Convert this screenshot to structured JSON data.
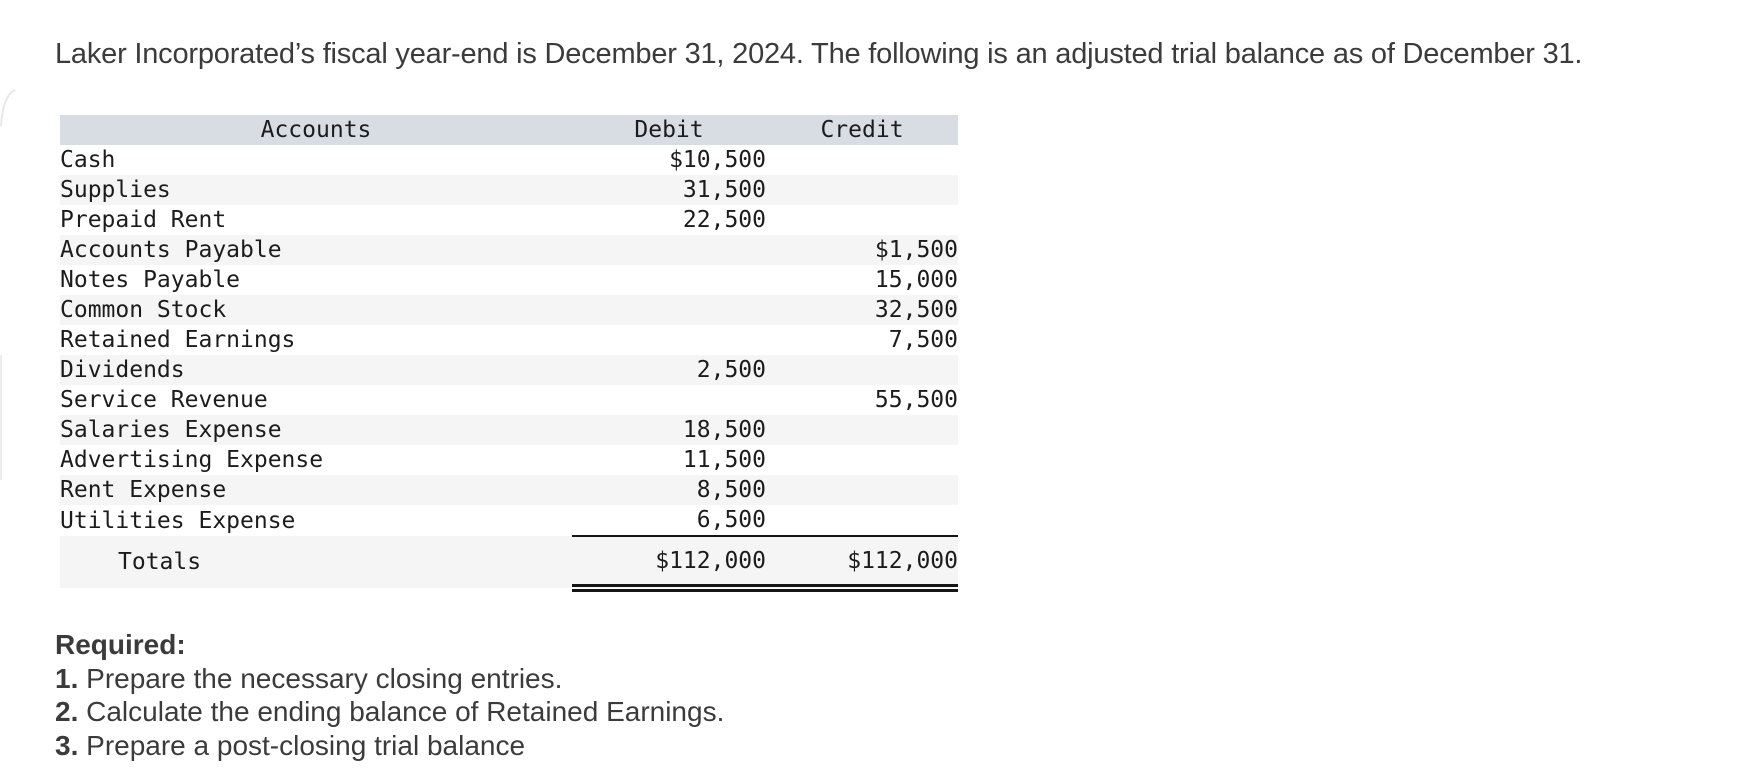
{
  "intro": "Laker Incorporated’s fiscal year-end is December 31, 2024. The following is an adjusted trial balance as of December 31.",
  "table": {
    "headers": {
      "accounts": "Accounts",
      "debit": "Debit",
      "credit": "Credit"
    },
    "rows": [
      {
        "account": "Cash",
        "debit": "$10,500",
        "credit": ""
      },
      {
        "account": "Supplies",
        "debit": "31,500",
        "credit": ""
      },
      {
        "account": "Prepaid Rent",
        "debit": "22,500",
        "credit": ""
      },
      {
        "account": "Accounts Payable",
        "debit": "",
        "credit": "$1,500"
      },
      {
        "account": "Notes Payable",
        "debit": "",
        "credit": "15,000"
      },
      {
        "account": "Common Stock",
        "debit": "",
        "credit": "32,500"
      },
      {
        "account": "Retained Earnings",
        "debit": "",
        "credit": "7,500"
      },
      {
        "account": "Dividends",
        "debit": "2,500",
        "credit": ""
      },
      {
        "account": "Service Revenue",
        "debit": "",
        "credit": "55,500"
      },
      {
        "account": "Salaries Expense",
        "debit": "18,500",
        "credit": ""
      },
      {
        "account": "Advertising Expense",
        "debit": "11,500",
        "credit": ""
      },
      {
        "account": "Rent Expense",
        "debit": "8,500",
        "credit": ""
      },
      {
        "account": "Utilities Expense",
        "debit": "6,500",
        "credit": ""
      }
    ],
    "totals": {
      "label": "Totals",
      "debit": "$112,000",
      "credit": "$112,000"
    }
  },
  "required": {
    "heading": "Required:",
    "items": [
      {
        "num": "1.",
        "text": " Prepare the necessary closing entries."
      },
      {
        "num": "2.",
        "text": " Calculate the ending balance of Retained Earnings."
      },
      {
        "num": "3.",
        "text": " Prepare a post-closing trial balance"
      }
    ]
  },
  "colors": {
    "header_bg": "#d8dce3",
    "row_alt": "#f5f5f6",
    "rule": "#161616",
    "table_text": "#1c1c1c",
    "body_text": "#3b3b3b"
  }
}
